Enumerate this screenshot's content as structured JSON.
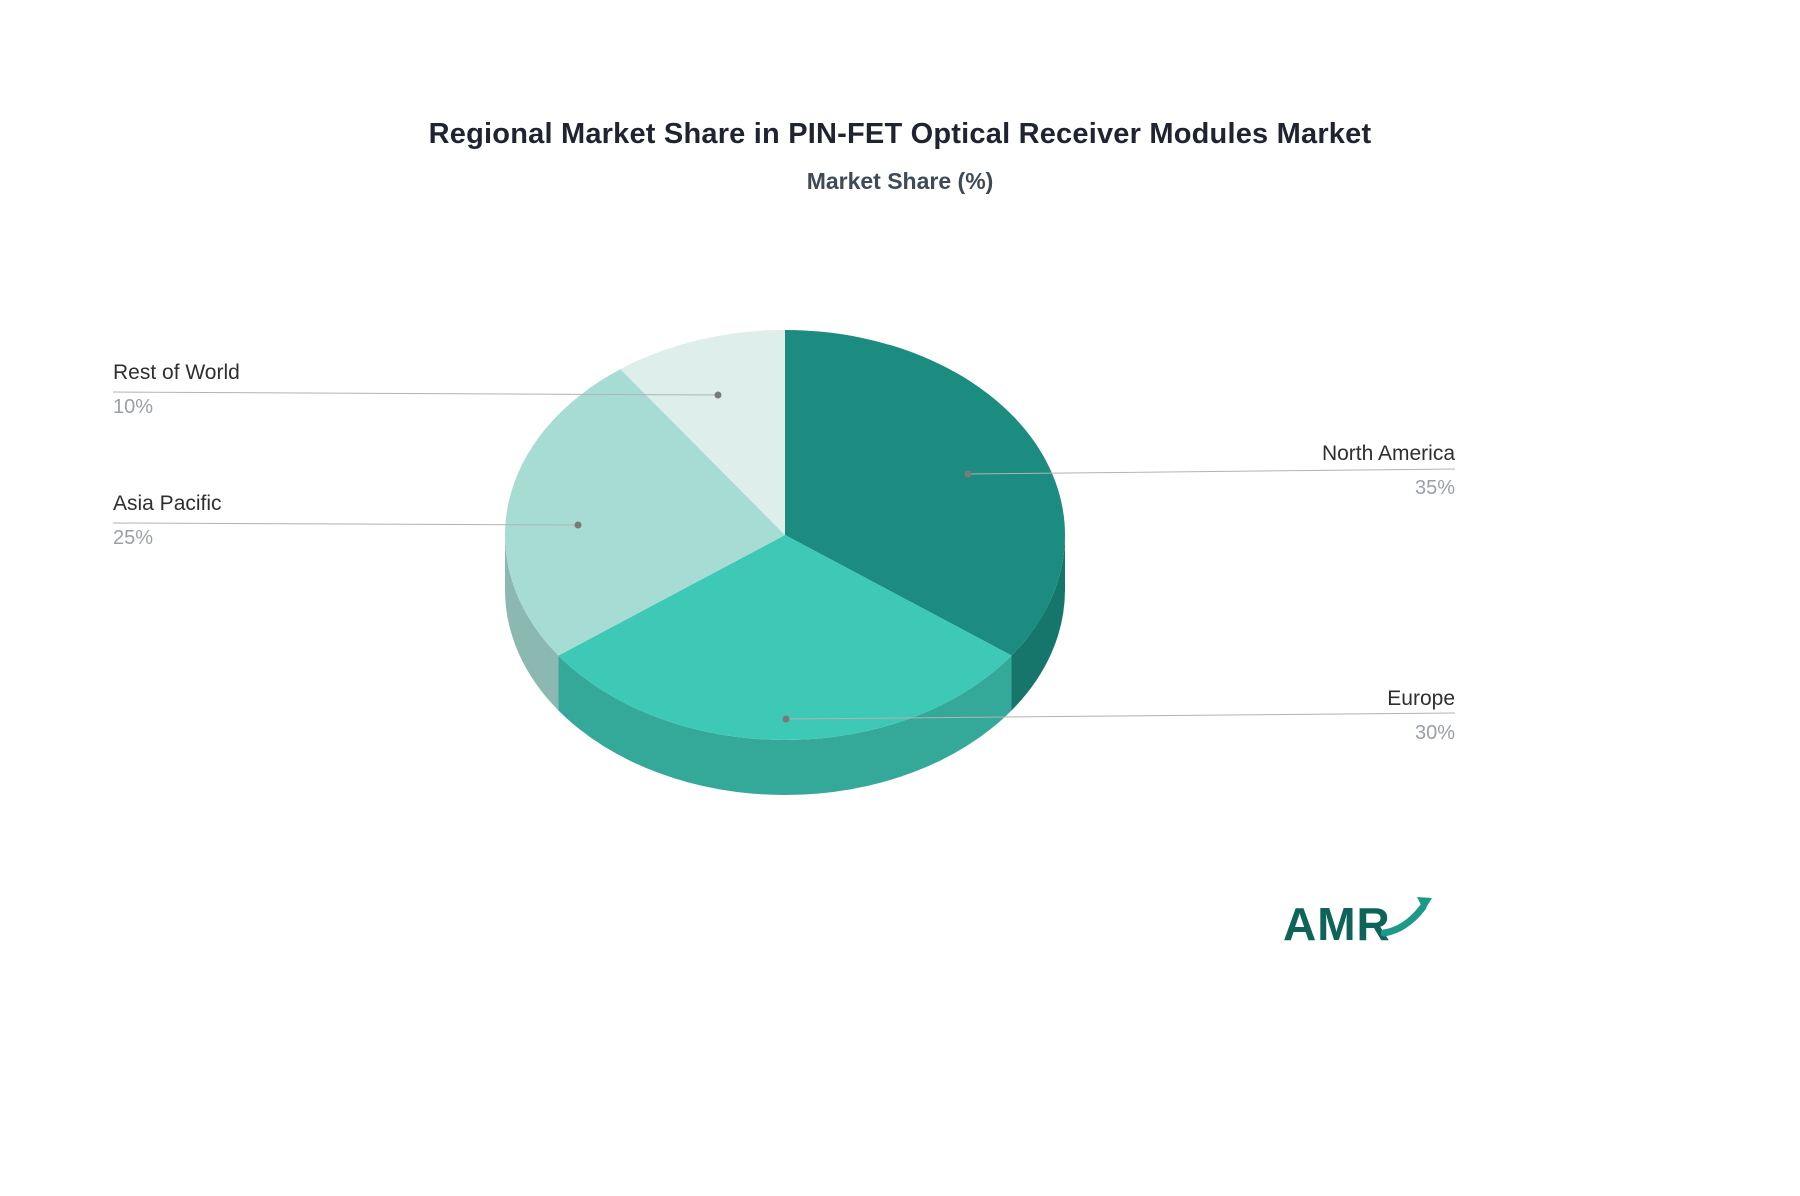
{
  "title": "Regional Market Share in PIN-FET Optical Receiver Modules Market",
  "subtitle": "Market Share (%)",
  "chart_data": {
    "type": "pie",
    "title": "Regional Market Share in PIN-FET Optical Receiver Modules Market",
    "subtitle": "Market Share (%)",
    "unit": "%",
    "effect": "3d",
    "direction": "clockwise",
    "start_angle_deg": 0,
    "labels_position": "outside-with-leader-lines",
    "slices": [
      {
        "label": "North America",
        "value": 35,
        "pct": "35%",
        "color": "#1b8c7f"
      },
      {
        "label": "Europe",
        "value": 30,
        "pct": "30%",
        "color": "#3ec9b6"
      },
      {
        "label": "Asia Pacific",
        "value": 25,
        "pct": "25%",
        "color": "#a6dcd3"
      },
      {
        "label": "Rest of World",
        "value": 10,
        "pct": "10%",
        "color": "#ddeeeb"
      }
    ]
  },
  "logo": {
    "text": "AMR",
    "color": "#0e6459",
    "arrow_color": "#1d9a87"
  }
}
